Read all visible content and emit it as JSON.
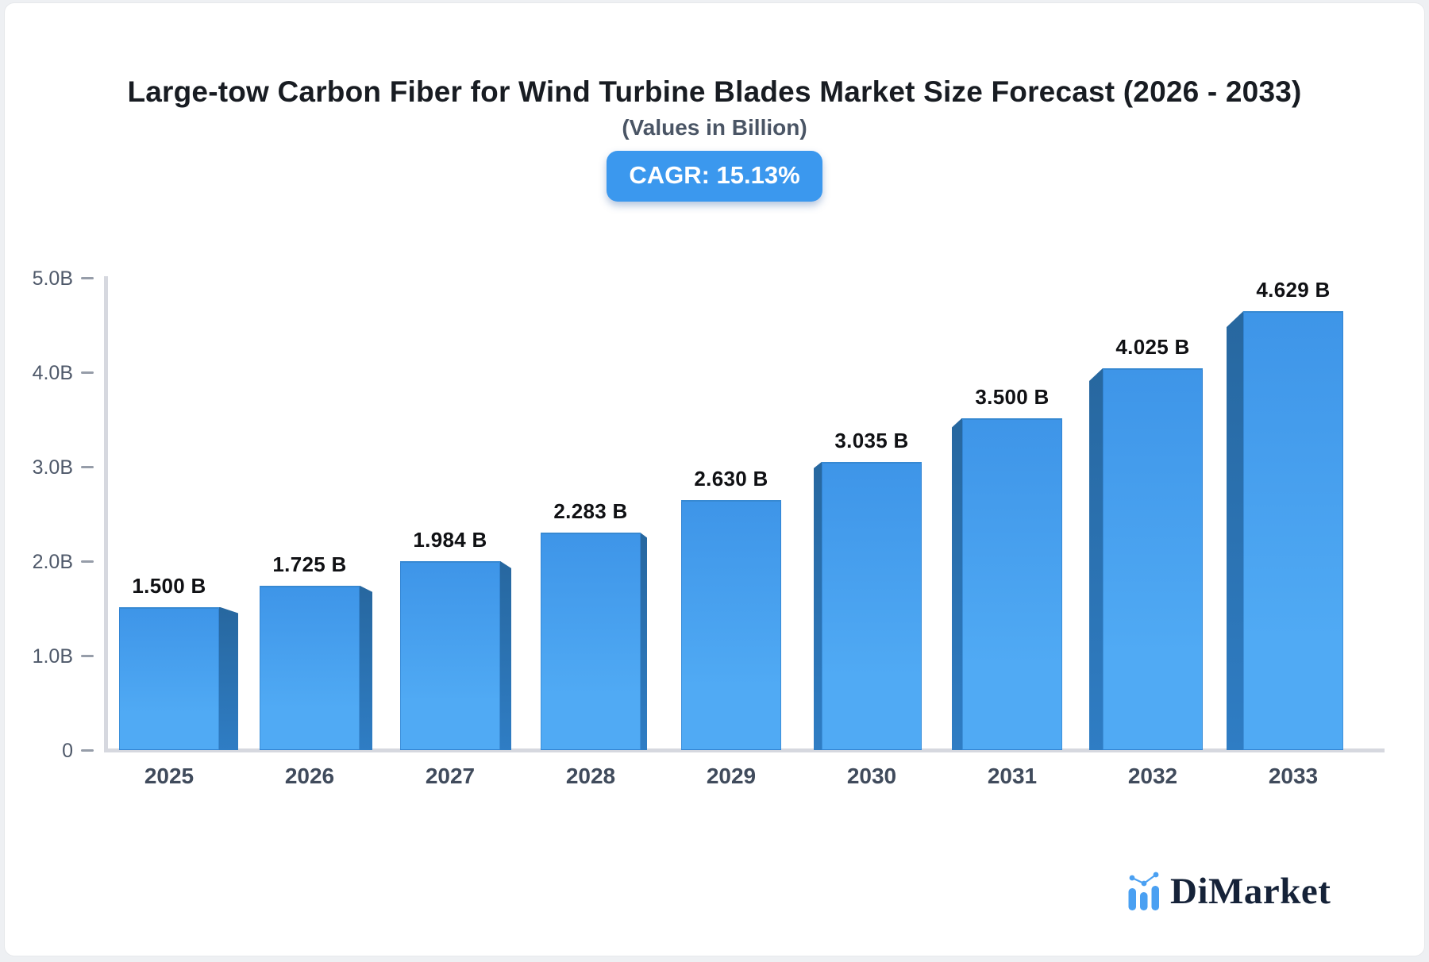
{
  "header": {
    "title": "Large-tow Carbon Fiber for Wind Turbine Blades Market Size Forecast (2026 - 2033)",
    "subtitle": "(Values in Billion)",
    "cagr_badge": "CAGR: 15.13%",
    "badge_color": "#3b98ee"
  },
  "chart_data": {
    "type": "bar",
    "categories": [
      "2025",
      "2026",
      "2027",
      "2028",
      "2029",
      "2030",
      "2031",
      "2032",
      "2033"
    ],
    "values": [
      1.5,
      1.725,
      1.984,
      2.283,
      2.63,
      3.035,
      3.5,
      4.025,
      4.629
    ],
    "bar_labels": [
      "1.500 B",
      "1.725 B",
      "1.984 B",
      "2.283 B",
      "2.630 B",
      "3.035 B",
      "3.500 B",
      "4.025 B",
      "4.629 B"
    ],
    "title": "Large-tow Carbon Fiber for Wind Turbine Blades Market Size Forecast (2026 - 2033)",
    "xlabel": "",
    "ylabel": "",
    "ylim": [
      0,
      5
    ],
    "yticks": [
      {
        "label": "5.0B",
        "value": 5.0
      },
      {
        "label": "4.0B",
        "value": 4.0
      },
      {
        "label": "3.0B",
        "value": 3.0
      },
      {
        "label": "2.0B",
        "value": 2.0
      },
      {
        "label": "1.0B",
        "value": 1.0
      },
      {
        "label": "0",
        "value": 0.0
      }
    ],
    "grid": false,
    "legend": false,
    "bar_color_top": "#3e95e8",
    "bar_color_bottom": "#50aaf4",
    "bar_side_color_top": "#27679f",
    "bar_side_color_bottom": "#2f7dc4",
    "axis_color": "#d6d8df"
  },
  "footer": {
    "brand": "DiMarket",
    "logo_color": "#4aa0f2"
  }
}
